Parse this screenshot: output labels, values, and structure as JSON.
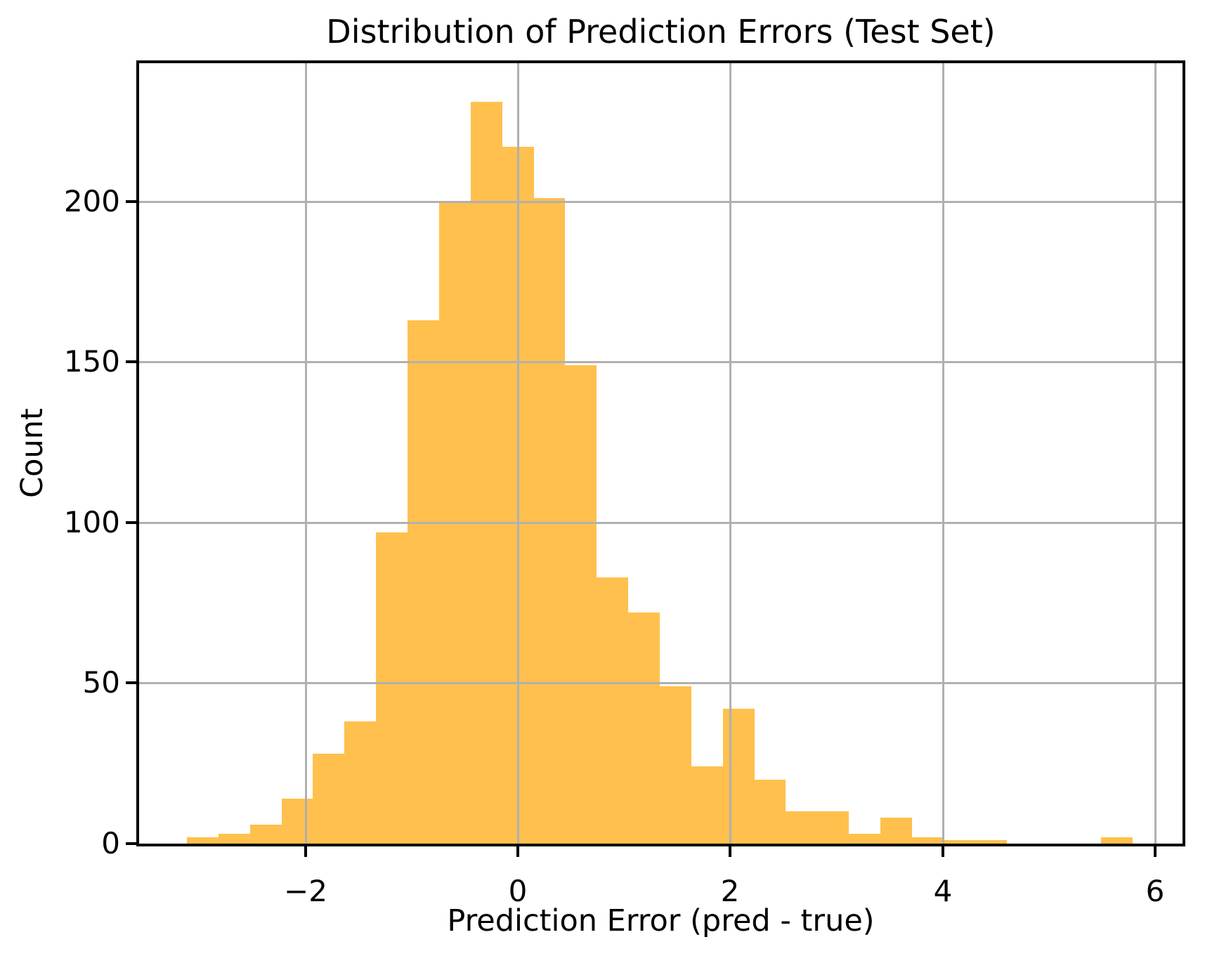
{
  "figure": {
    "title": "Distribution of Prediction Errors (Test Set)",
    "xlabel": "Prediction Error (pred - true)",
    "ylabel": "Count"
  },
  "chart_data": {
    "type": "histogram",
    "title": "Distribution of Prediction Errors (Test Set)",
    "xlabel": "Prediction Error (pred - true)",
    "ylabel": "Count",
    "bar_color": "#FFC04D",
    "grid_color": "#B0B0B0",
    "grid": true,
    "legend": false,
    "xlim": [
      -3.57,
      6.26
    ],
    "ylim": [
      0,
      243
    ],
    "xticks": [
      -2,
      0,
      2,
      4,
      6
    ],
    "yticks": [
      0,
      50,
      100,
      150,
      200
    ],
    "bin_start": -3.12,
    "bin_width": 0.297,
    "counts": [
      2,
      3,
      6,
      14,
      28,
      38,
      97,
      163,
      200,
      231,
      217,
      201,
      149,
      83,
      72,
      49,
      24,
      42,
      20,
      10,
      10,
      3,
      8,
      2,
      1,
      1,
      0,
      0,
      0,
      2
    ]
  }
}
